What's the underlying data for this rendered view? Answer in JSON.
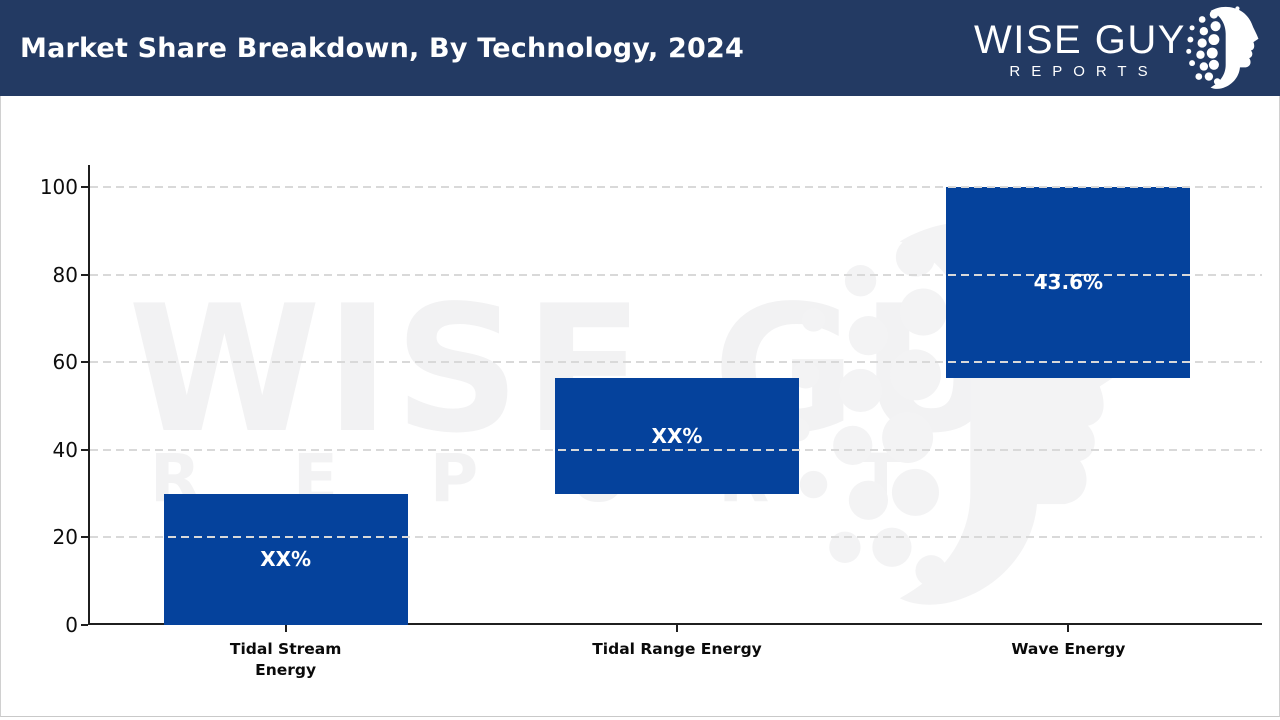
{
  "header": {
    "title": "Market Share Breakdown, By Technology, 2024",
    "background_color": "#233a63",
    "logo": {
      "brand_line1": "WISE GUY",
      "brand_line2": "REPORTS",
      "head_icon": "dotted-head-profile-icon"
    }
  },
  "watermark": {
    "line1": "WISE GUY",
    "line2": "REPORTS",
    "head_icon": "dotted-head-profile-icon",
    "color": "#f2f2f3"
  },
  "chart_data": {
    "type": "bar",
    "subtype": "waterfall",
    "title": "Market Share Breakdown, By Technology, 2024",
    "categories": [
      "Tidal Stream Energy",
      "Tidal Range Energy",
      "Wave Energy"
    ],
    "values": [
      30,
      26.4,
      43.6
    ],
    "segment_starts": [
      0,
      30,
      56.4
    ],
    "segment_ends": [
      30,
      56.4,
      100
    ],
    "bar_labels": [
      "XX%",
      "XX%",
      "43.6%"
    ],
    "yticks": [
      0,
      20,
      40,
      60,
      80,
      100
    ],
    "ylim": [
      0,
      100
    ],
    "xlabel": "",
    "ylabel": "",
    "grid": "dashed-horizontal-over-bars",
    "legend": "none",
    "bar_color": "#05429c",
    "bar_label_color": "#ffffff",
    "axis_color": "#1f1f1f",
    "gridline_color": "#d9d9d9"
  }
}
